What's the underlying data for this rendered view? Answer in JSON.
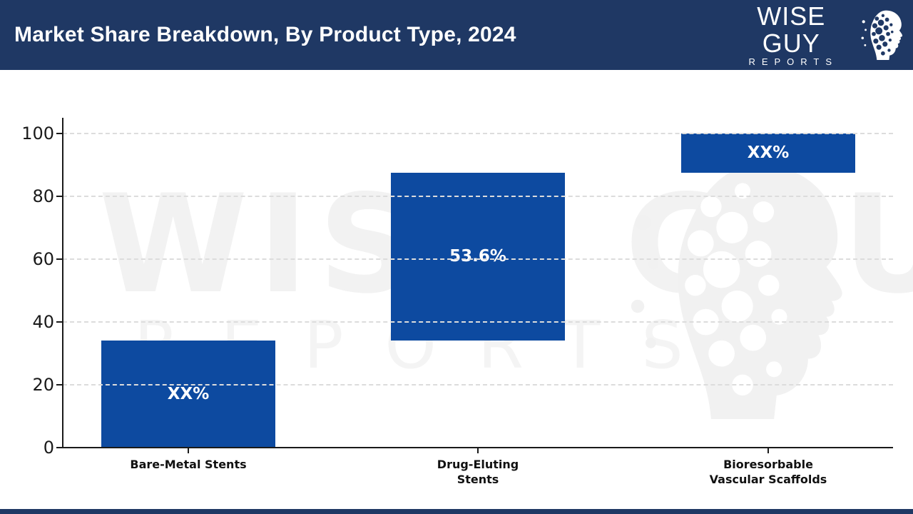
{
  "header": {
    "title": "Market Share Breakdown, By Product Type, 2024",
    "logo": {
      "wordmark": "WISE GUY",
      "subtitle": "REPORTS",
      "icon": "dotted-head-profile"
    }
  },
  "watermark": {
    "line1": "WISE G U Y",
    "line2": "REPORTS",
    "icon": "dotted-head-profile"
  },
  "chart_data": {
    "type": "bar",
    "subtype": "floating-waterfall",
    "title": "Market Share Breakdown, By Product Type, 2024",
    "categories": [
      "Bare-Metal Stents",
      "Drug-Eluting Stents",
      "Bioresorbable Vascular Scaffolds"
    ],
    "category_label_lines": [
      [
        "Bare-Metal Stents"
      ],
      [
        "Drug-Eluting",
        "Stents"
      ],
      [
        "Bioresorbable",
        "Vascular Scaffolds"
      ]
    ],
    "bars": [
      {
        "category": "Bare-Metal Stents",
        "start": 0,
        "end": 34,
        "height": 34,
        "label": "XX%"
      },
      {
        "category": "Drug-Eluting Stents",
        "start": 34,
        "end": 87.6,
        "height": 53.6,
        "label": "53.6%"
      },
      {
        "category": "Bioresorbable Vascular Scaffolds",
        "start": 87.6,
        "end": 100,
        "height": 12.4,
        "label": "XX%"
      }
    ],
    "xlabel": "",
    "ylabel": "",
    "yticks": [
      0,
      20,
      40,
      60,
      80,
      100
    ],
    "ylim": [
      0,
      104
    ],
    "grid": "horizontal-dashed",
    "legend": "none",
    "bar_color": "#0d4aa0",
    "bar_label_color": "#ffffff",
    "axis_color": "#1a1a1a",
    "grid_color": "#dcdcdc"
  },
  "colors": {
    "header_bg": "#1f3864",
    "footer_bg": "#1f3864",
    "page_bg": "#ffffff",
    "watermark": "#f2f2f2"
  }
}
